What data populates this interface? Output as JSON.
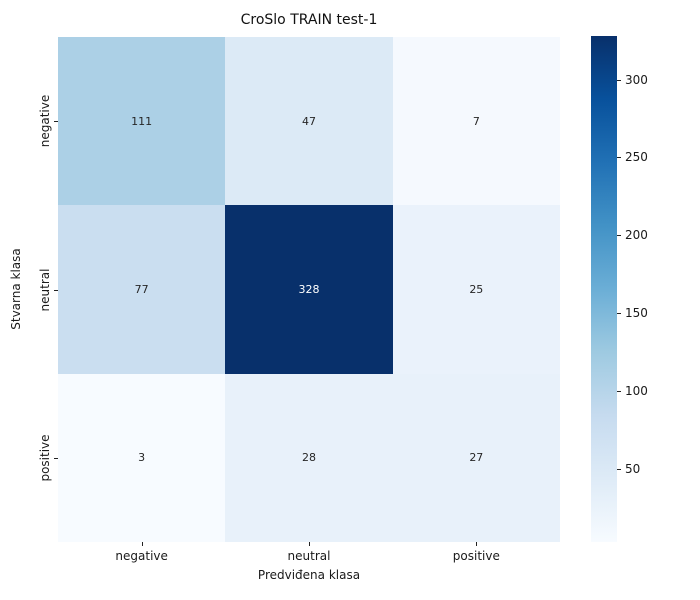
{
  "title": "CroSlo TRAIN test-1",
  "chart_data": {
    "type": "heatmap",
    "title": "CroSlo TRAIN test-1",
    "xlabel": "Predviđena klasa",
    "ylabel": "Stvarna klasa",
    "x_categories": [
      "negative",
      "neutral",
      "positive"
    ],
    "y_categories": [
      "negative",
      "neutral",
      "positive"
    ],
    "matrix": [
      [
        111,
        47,
        7
      ],
      [
        77,
        328,
        25
      ],
      [
        3,
        28,
        27
      ]
    ],
    "vmin": 3,
    "vmax": 328,
    "colormap": "Blues",
    "grid": false,
    "legend_position": "colorbar-right",
    "colorbar_ticks": [
      50,
      100,
      150,
      200,
      250,
      300
    ],
    "cell_colors": [
      [
        "#acd0e6",
        "#dceaf6",
        "#f5f9fe"
      ],
      [
        "#cadef0",
        "#08306b",
        "#eaf2fb"
      ],
      [
        "#f7fbff",
        "#e8f1fa",
        "#e8f1fa"
      ]
    ],
    "cell_text_colors": [
      [
        "#262626",
        "#262626",
        "#262626"
      ],
      [
        "#262626",
        "#ffffff",
        "#262626"
      ],
      [
        "#262626",
        "#262626",
        "#262626"
      ]
    ],
    "colormap_stops": [
      "#f7fbff",
      "#deebf7",
      "#c6dbef",
      "#9ecae1",
      "#6baed6",
      "#4292c6",
      "#2171b5",
      "#08519c",
      "#08306b"
    ]
  }
}
